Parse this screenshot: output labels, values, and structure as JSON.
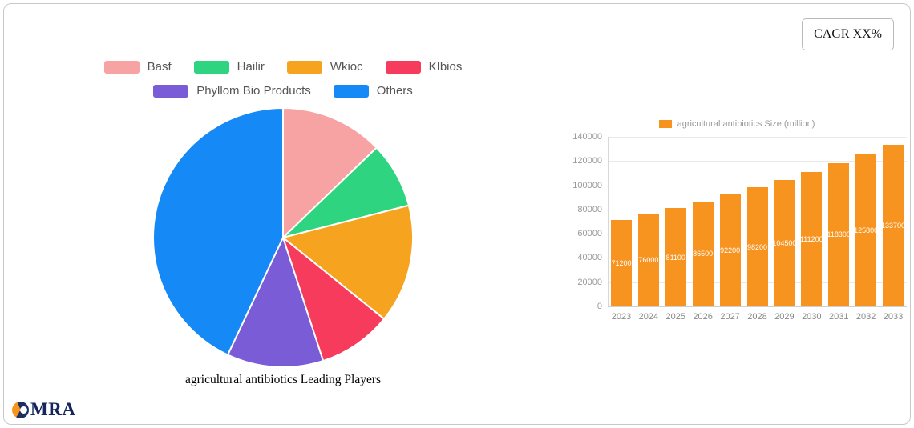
{
  "card": {
    "cagr_label": "CAGR XX%"
  },
  "logo": {
    "text": "MRA"
  },
  "chart_data": [
    {
      "type": "pie",
      "title": "agricultural antibiotics Leading Players",
      "labels": [
        "Basf",
        "Hailir",
        "Wkioc",
        "KIbios",
        "Phyllom Bio Products",
        "Others"
      ],
      "values": [
        12.8,
        8.2,
        14.8,
        9.2,
        12.0,
        43.0
      ],
      "colors": [
        "#f8a3a3",
        "#2ed47f",
        "#f6a41f",
        "#f73b5c",
        "#7a5cd6",
        "#1589f5"
      ],
      "legend_position": "top",
      "start_angle_deg": 0,
      "direction": "clockwise"
    },
    {
      "type": "bar",
      "series_name": "agricultural antibiotics Size (million)",
      "categories": [
        "2023",
        "2024",
        "2025",
        "2026",
        "2027",
        "2028",
        "2029",
        "2030",
        "2031",
        "2032",
        "2033"
      ],
      "values": [
        71200,
        76000,
        81100,
        86500,
        92200,
        98200,
        104500,
        111200,
        118300,
        125800,
        133700
      ],
      "bar_color": "#f79420",
      "value_label_color": "#ffffff",
      "ylim": [
        0,
        140000
      ],
      "yticks": [
        0,
        20000,
        40000,
        60000,
        80000,
        100000,
        120000,
        140000
      ],
      "grid": true,
      "legend_position": "top"
    }
  ]
}
